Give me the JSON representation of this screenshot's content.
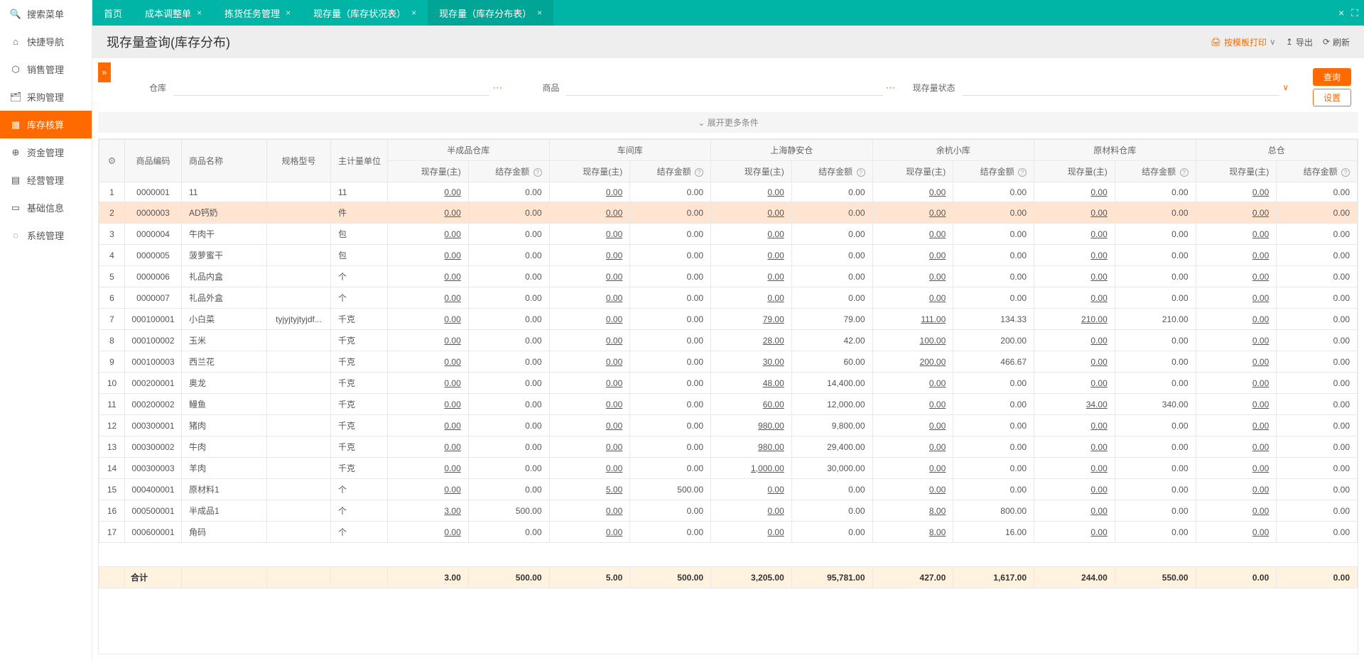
{
  "sidebar": {
    "items": [
      {
        "label": "搜索菜单",
        "icon": "🔍"
      },
      {
        "label": "快捷导航",
        "icon": "⌂"
      },
      {
        "label": "销售管理",
        "icon": "⬡"
      },
      {
        "label": "采购管理",
        "icon": "🗂"
      },
      {
        "label": "库存核算",
        "icon": "▦"
      },
      {
        "label": "资金管理",
        "icon": "⊕"
      },
      {
        "label": "经营管理",
        "icon": "▤"
      },
      {
        "label": "基础信息",
        "icon": "▭"
      },
      {
        "label": "系统管理",
        "icon": "◌"
      }
    ],
    "active_index": 4
  },
  "tabs": {
    "items": [
      {
        "label": "首页",
        "closable": false
      },
      {
        "label": "成本调整单",
        "closable": true
      },
      {
        "label": "拣货任务管理",
        "closable": true
      },
      {
        "label": "现存量（库存状况表）",
        "closable": true
      },
      {
        "label": "现存量（库存分布表）",
        "closable": true
      }
    ],
    "active_index": 4
  },
  "page": {
    "title": "现存量查询(库存分布)",
    "print_label": "按模板打印",
    "export_label": "导出",
    "refresh_label": "刷新"
  },
  "filters": {
    "warehouse_label": "仓库",
    "product_label": "商品",
    "status_label": "现存量状态",
    "query_btn": "查询",
    "settings_btn": "设置",
    "expand_more": "展开更多条件"
  },
  "table": {
    "headers": {
      "product_code": "商品编码",
      "product_name": "商品名称",
      "spec": "规格型号",
      "main_unit": "主计量单位",
      "group_labels": [
        "半成品仓库",
        "车间库",
        "上海静安仓",
        "余杭小库",
        "原材料仓库",
        "总仓"
      ],
      "qty_label": "现存量(主)",
      "amt_label": "结存金额"
    },
    "highlighted_row": 1,
    "rows": [
      {
        "idx": "1",
        "code": "0000001",
        "name": "11",
        "spec": "",
        "unit": "11",
        "vals": [
          "0.00",
          "0.00",
          "0.00",
          "0.00",
          "0.00",
          "0.00",
          "0.00",
          "0.00",
          "0.00",
          "0.00",
          "0.00",
          "0.00"
        ]
      },
      {
        "idx": "2",
        "code": "0000003",
        "name": "AD钙奶",
        "spec": "",
        "unit": "件",
        "vals": [
          "0.00",
          "0.00",
          "0.00",
          "0.00",
          "0.00",
          "0.00",
          "0.00",
          "0.00",
          "0.00",
          "0.00",
          "0.00",
          "0.00"
        ]
      },
      {
        "idx": "3",
        "code": "0000004",
        "name": "牛肉干",
        "spec": "",
        "unit": "包",
        "vals": [
          "0.00",
          "0.00",
          "0.00",
          "0.00",
          "0.00",
          "0.00",
          "0.00",
          "0.00",
          "0.00",
          "0.00",
          "0.00",
          "0.00"
        ]
      },
      {
        "idx": "4",
        "code": "0000005",
        "name": "菠萝蜜干",
        "spec": "",
        "unit": "包",
        "vals": [
          "0.00",
          "0.00",
          "0.00",
          "0.00",
          "0.00",
          "0.00",
          "0.00",
          "0.00",
          "0.00",
          "0.00",
          "0.00",
          "0.00"
        ]
      },
      {
        "idx": "5",
        "code": "0000006",
        "name": "礼品内盒",
        "spec": "",
        "unit": "个",
        "vals": [
          "0.00",
          "0.00",
          "0.00",
          "0.00",
          "0.00",
          "0.00",
          "0.00",
          "0.00",
          "0.00",
          "0.00",
          "0.00",
          "0.00"
        ]
      },
      {
        "idx": "6",
        "code": "0000007",
        "name": "礼品外盒",
        "spec": "",
        "unit": "个",
        "vals": [
          "0.00",
          "0.00",
          "0.00",
          "0.00",
          "0.00",
          "0.00",
          "0.00",
          "0.00",
          "0.00",
          "0.00",
          "0.00",
          "0.00"
        ]
      },
      {
        "idx": "7",
        "code": "000100001",
        "name": "小白菜",
        "spec": "tyjyjtyjtyjdf...",
        "unit": "千克",
        "vals": [
          "0.00",
          "0.00",
          "0.00",
          "0.00",
          "79.00",
          "79.00",
          "111.00",
          "134.33",
          "210.00",
          "210.00",
          "0.00",
          "0.00"
        ]
      },
      {
        "idx": "8",
        "code": "000100002",
        "name": "玉米",
        "spec": "",
        "unit": "千克",
        "vals": [
          "0.00",
          "0.00",
          "0.00",
          "0.00",
          "28.00",
          "42.00",
          "100.00",
          "200.00",
          "0.00",
          "0.00",
          "0.00",
          "0.00"
        ]
      },
      {
        "idx": "9",
        "code": "000100003",
        "name": "西兰花",
        "spec": "",
        "unit": "千克",
        "vals": [
          "0.00",
          "0.00",
          "0.00",
          "0.00",
          "30.00",
          "60.00",
          "200.00",
          "466.67",
          "0.00",
          "0.00",
          "0.00",
          "0.00"
        ]
      },
      {
        "idx": "10",
        "code": "000200001",
        "name": "奥龙",
        "spec": "",
        "unit": "千克",
        "vals": [
          "0.00",
          "0.00",
          "0.00",
          "0.00",
          "48.00",
          "14,400.00",
          "0.00",
          "0.00",
          "0.00",
          "0.00",
          "0.00",
          "0.00"
        ]
      },
      {
        "idx": "11",
        "code": "000200002",
        "name": "鳗鱼",
        "spec": "",
        "unit": "千克",
        "vals": [
          "0.00",
          "0.00",
          "0.00",
          "0.00",
          "60.00",
          "12,000.00",
          "0.00",
          "0.00",
          "34.00",
          "340.00",
          "0.00",
          "0.00"
        ]
      },
      {
        "idx": "12",
        "code": "000300001",
        "name": "猪肉",
        "spec": "",
        "unit": "千克",
        "vals": [
          "0.00",
          "0.00",
          "0.00",
          "0.00",
          "980.00",
          "9,800.00",
          "0.00",
          "0.00",
          "0.00",
          "0.00",
          "0.00",
          "0.00"
        ]
      },
      {
        "idx": "13",
        "code": "000300002",
        "name": "牛肉",
        "spec": "",
        "unit": "千克",
        "vals": [
          "0.00",
          "0.00",
          "0.00",
          "0.00",
          "980.00",
          "29,400.00",
          "0.00",
          "0.00",
          "0.00",
          "0.00",
          "0.00",
          "0.00"
        ]
      },
      {
        "idx": "14",
        "code": "000300003",
        "name": "羊肉",
        "spec": "",
        "unit": "千克",
        "vals": [
          "0.00",
          "0.00",
          "0.00",
          "0.00",
          "1,000.00",
          "30,000.00",
          "0.00",
          "0.00",
          "0.00",
          "0.00",
          "0.00",
          "0.00"
        ]
      },
      {
        "idx": "15",
        "code": "000400001",
        "name": "原材料1",
        "spec": "",
        "unit": "个",
        "vals": [
          "0.00",
          "0.00",
          "5.00",
          "500.00",
          "0.00",
          "0.00",
          "0.00",
          "0.00",
          "0.00",
          "0.00",
          "0.00",
          "0.00"
        ]
      },
      {
        "idx": "16",
        "code": "000500001",
        "name": "半成品1",
        "spec": "",
        "unit": "个",
        "vals": [
          "3.00",
          "500.00",
          "0.00",
          "0.00",
          "0.00",
          "0.00",
          "8.00",
          "800.00",
          "0.00",
          "0.00",
          "0.00",
          "0.00"
        ]
      },
      {
        "idx": "17",
        "code": "000600001",
        "name": "角码",
        "spec": "",
        "unit": "个",
        "vals": [
          "0.00",
          "0.00",
          "0.00",
          "0.00",
          "0.00",
          "0.00",
          "8.00",
          "16.00",
          "0.00",
          "0.00",
          "0.00",
          "0.00"
        ]
      }
    ],
    "footer": {
      "label": "合计",
      "vals": [
        "3.00",
        "500.00",
        "5.00",
        "500.00",
        "3,205.00",
        "95,781.00",
        "427.00",
        "1,617.00",
        "244.00",
        "550.00",
        "0.00",
        "0.00"
      ]
    }
  },
  "colors": {
    "accent": "#ff6a00",
    "tab_bg": "#00b5a5",
    "tab_active": "#00a595",
    "highlight_row": "#ffe4d1",
    "footer_row": "#fff3e0"
  }
}
